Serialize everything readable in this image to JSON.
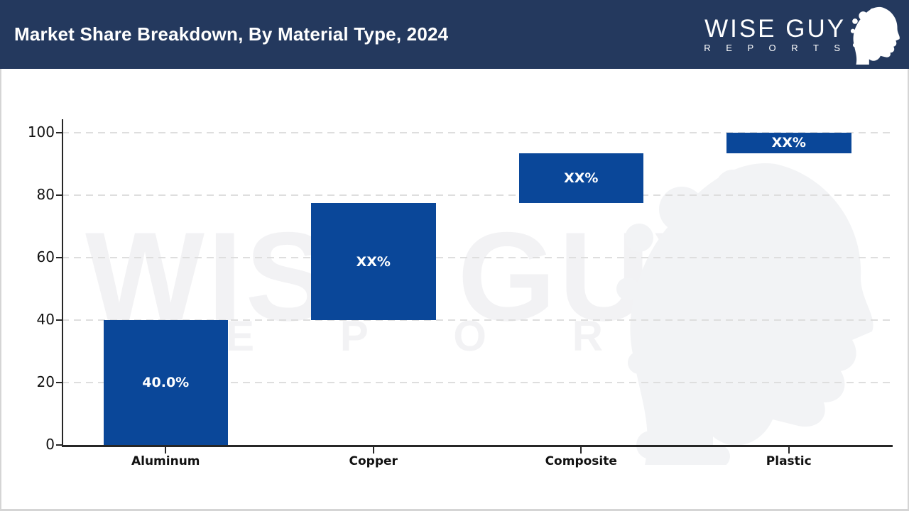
{
  "header": {
    "title": "Market Share Breakdown, By Material Type, 2024",
    "logo": {
      "name_line": "WISE GUY",
      "sub_line": "R E P O R T S"
    },
    "colors": {
      "bg": "#24395e",
      "text": "#ffffff"
    }
  },
  "watermark": {
    "line1": "WISE GUY",
    "line2": "R E P O R T S"
  },
  "chart_data": {
    "type": "bar",
    "subtype": "waterfall",
    "title": "Market Share Breakdown, By Material Type, 2024",
    "categories": [
      "Aluminum",
      "Copper",
      "Composite",
      "Plastic"
    ],
    "segments": [
      {
        "category": "Aluminum",
        "start": 0,
        "end": 40,
        "label": "40.0%"
      },
      {
        "category": "Copper",
        "start": 40,
        "end": 77.5,
        "label": "XX%"
      },
      {
        "category": "Composite",
        "start": 77.5,
        "end": 93.5,
        "label": "XX%"
      },
      {
        "category": "Plastic",
        "start": 93.5,
        "end": 100,
        "label": "XX%"
      }
    ],
    "values_pct": [
      40,
      37.5,
      16,
      6.5
    ],
    "ylim": [
      0,
      100
    ],
    "yticks": [
      0,
      20,
      40,
      60,
      80,
      100
    ],
    "xlabel": "",
    "ylabel": "",
    "grid": "dashed-horizontal",
    "legend": null,
    "bar_color": "#0a4799",
    "bar_label_color": "#ffffff",
    "axis_color": "#262626",
    "gridline_color": "#dedede"
  }
}
